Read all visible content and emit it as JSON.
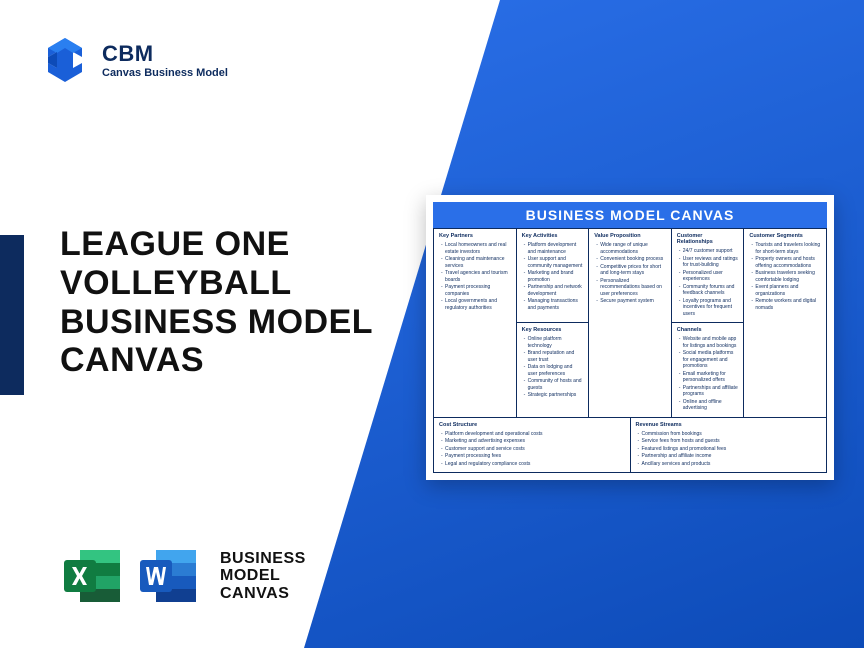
{
  "logo": {
    "title": "CBM",
    "subtitle": "Canvas Business Model"
  },
  "main_title": "LEAGUE ONE VOLLEYBALL BUSINESS MODEL CANVAS",
  "bmc_label_l1": "BUSINESS",
  "bmc_label_l2": "MODEL",
  "bmc_label_l3": "CANVAS",
  "colors": {
    "primary_blue": "#2a6fe8",
    "dark_blue": "#0d2b5e",
    "gradient_end": "#0d4bb8",
    "excel_green": "#107c41",
    "word_blue": "#185abd"
  },
  "canvas": {
    "header": "BUSINESS MODEL CANVAS",
    "sections": {
      "key_partners": {
        "title": "Key Partners",
        "items": [
          "Local homeowners and real estate investors",
          "Cleaning and maintenance services",
          "Travel agencies and tourism boards",
          "Payment processing companies",
          "Local governments and regulatory authorities"
        ]
      },
      "key_activities": {
        "title": "Key Activities",
        "items": [
          "Platform development and maintenance",
          "User support and community management",
          "Marketing and brand promotion",
          "Partnership and network development",
          "Managing transactions and payments"
        ]
      },
      "key_resources": {
        "title": "Key Resources",
        "items": [
          "Online platform technology",
          "Brand reputation and user trust",
          "Data on lodging and user preferences",
          "Community of hosts and guests",
          "Strategic partnerships"
        ]
      },
      "value_proposition": {
        "title": "Value Proposition",
        "items": [
          "Wide range of unique accommodations",
          "Convenient booking process",
          "Competitive prices for short and long-term stays",
          "Personalized recommendations based on user preferences",
          "Secure payment system"
        ]
      },
      "customer_relationships": {
        "title": "Customer Relationships",
        "items": [
          "24/7 customer support",
          "User reviews and ratings for trust-building",
          "Personalized user experiences",
          "Community forums and feedback channels",
          "Loyalty programs and incentives for frequent users"
        ]
      },
      "channels": {
        "title": "Channels",
        "items": [
          "Website and mobile app for listings and bookings",
          "Social media platforms for engagement and promotions",
          "Email marketing for personalized offers",
          "Partnerships and affiliate programs",
          "Online and offline advertising"
        ]
      },
      "customer_segments": {
        "title": "Customer Segments",
        "items": [
          "Tourists and travelers looking for short-term stays",
          "Property owners and hosts offering accommodations",
          "Business travelers seeking comfortable lodging",
          "Event planners and organizations",
          "Remote workers and digital nomads"
        ]
      },
      "cost_structure": {
        "title": "Cost Structure",
        "items": [
          "Platform development and operational costs",
          "Marketing and advertising expenses",
          "Customer support and service costs",
          "Payment processing fees",
          "Legal and regulatory compliance costs"
        ]
      },
      "revenue_streams": {
        "title": "Revenue Streams",
        "items": [
          "Commission from bookings",
          "Service fees from hosts and guests",
          "Featured listings and promotional fees",
          "Partnership and affiliate income",
          "Ancillary services and products"
        ]
      }
    }
  }
}
